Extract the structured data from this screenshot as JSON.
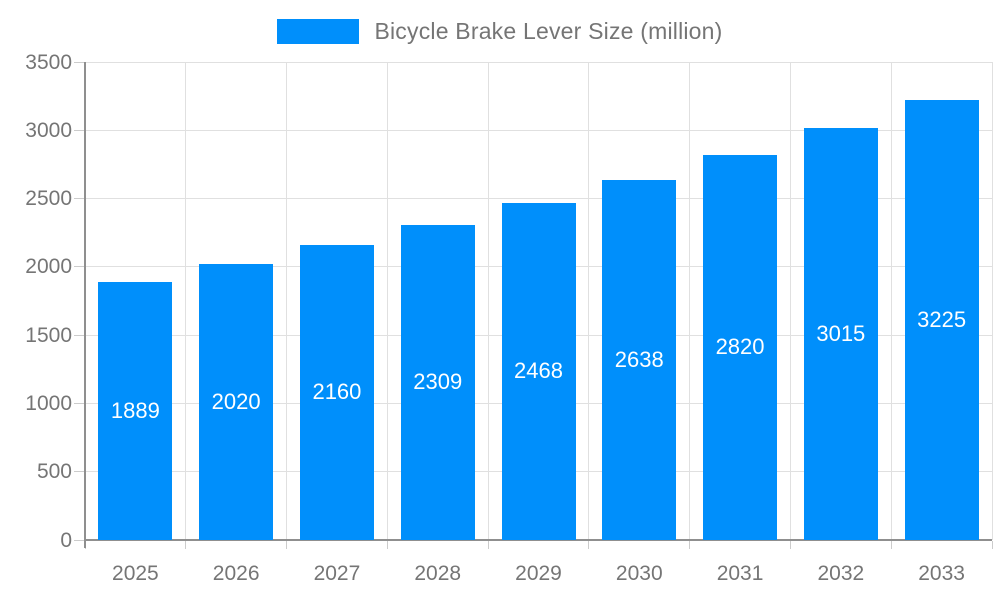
{
  "legend": {
    "label": "Bicycle Brake Lever Size (million)"
  },
  "chart_data": {
    "type": "bar",
    "title": "Bicycle Brake Lever Size (million)",
    "series": [
      {
        "name": "Bicycle Brake Lever Size (million)",
        "values": [
          1889,
          2020,
          2160,
          2309,
          2468,
          2638,
          2820,
          3015,
          3225
        ]
      }
    ],
    "categories": [
      "2025",
      "2026",
      "2027",
      "2028",
      "2029",
      "2030",
      "2031",
      "2032",
      "2033"
    ],
    "data_labels": [
      "1889",
      "2020",
      "2160",
      "2309",
      "2468",
      "2638",
      "2820",
      "3015",
      "3225"
    ],
    "xlabel": "",
    "ylabel": "",
    "ylim": [
      0,
      3500
    ],
    "ytick_step": 500,
    "yticks": [
      0,
      500,
      1000,
      1500,
      2000,
      2500,
      3000,
      3500
    ],
    "grid": true,
    "legend_position": "top-center",
    "colors": {
      "bar": "#008FFB",
      "bar_label": "#ffffff",
      "axis_text": "#757575",
      "grid": "#e0e0e0",
      "axis_line": "#8f8f8f",
      "tick": "#cccccc"
    }
  }
}
